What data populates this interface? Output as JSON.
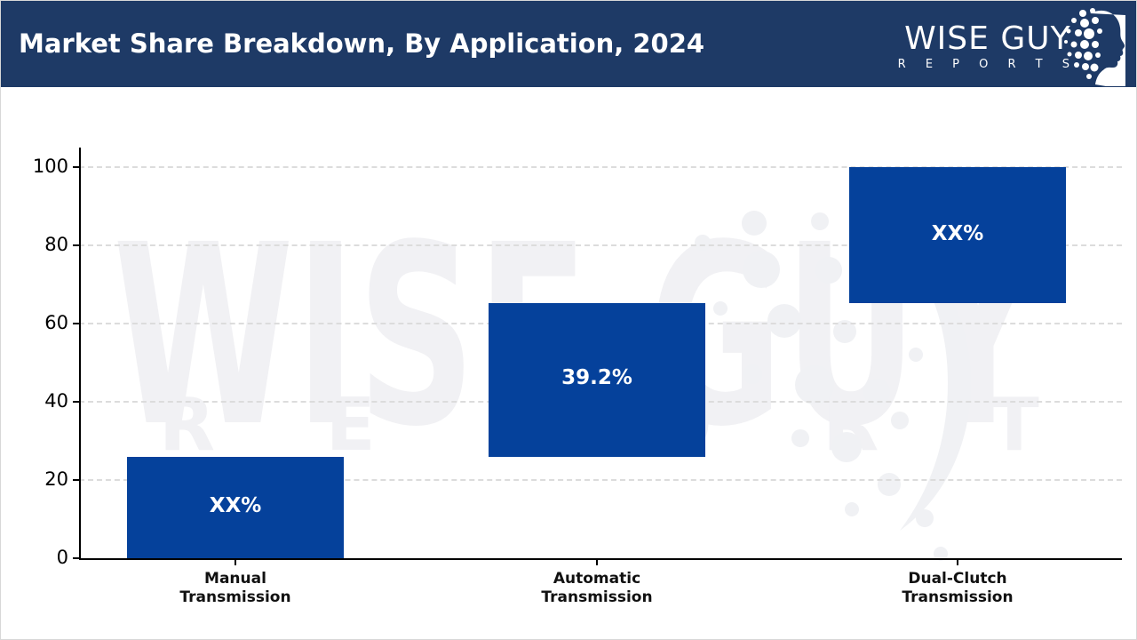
{
  "header": {
    "title": "Market Share Breakdown, By Application, 2024",
    "background_color": "#1e3a66",
    "logo": {
      "line1": "WISE GUY",
      "line2": "R E P O R T S",
      "icon": "dotted-face-profile-icon"
    }
  },
  "watermark": {
    "line1": "WISE GUY",
    "line2": "R E P O R T S"
  },
  "chart_data": {
    "type": "bar",
    "subtype": "waterfall-breakdown",
    "title": "Market Share Breakdown, By Application, 2024",
    "categories": [
      [
        "Manual",
        "Transmission"
      ],
      [
        "Automatic",
        "Transmission"
      ],
      [
        "Dual-Clutch",
        "Transmission"
      ]
    ],
    "segments": [
      {
        "category": "Manual Transmission",
        "start": 0,
        "end": 26,
        "value_label": "XX%"
      },
      {
        "category": "Automatic Transmission",
        "start": 26,
        "end": 65.2,
        "value_label": "39.2%"
      },
      {
        "category": "Dual-Clutch Transmission",
        "start": 65.2,
        "end": 100,
        "value_label": "XX%"
      }
    ],
    "yticks": [
      0,
      20,
      40,
      60,
      80,
      100
    ],
    "ylim": [
      0,
      105
    ],
    "xlabel": "",
    "ylabel": "",
    "grid": true,
    "grid_style": "dashed",
    "bar_color": "#05419b",
    "bar_label_color": "#ffffff",
    "legend": null
  }
}
